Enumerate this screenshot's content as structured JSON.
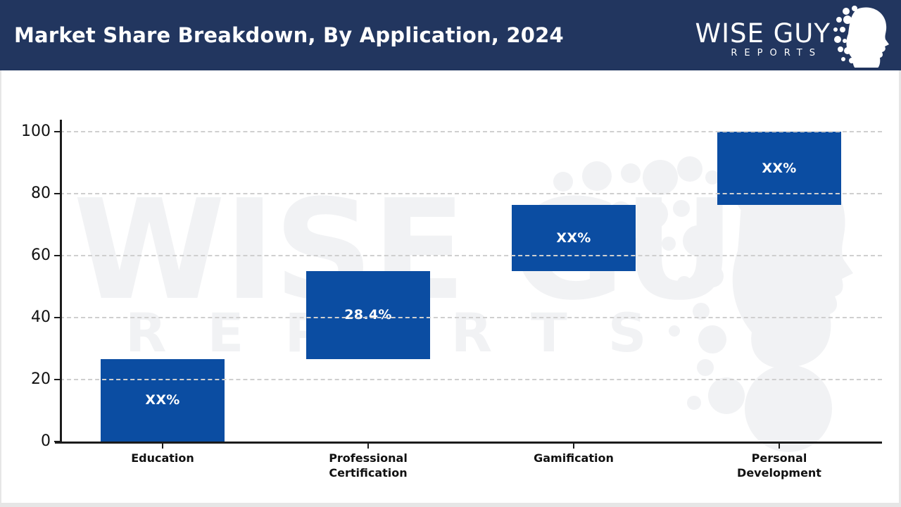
{
  "header": {
    "title": "Market Share Breakdown, By Application, 2024",
    "logo": {
      "name": "WISE GUY",
      "sub": "REPORTS"
    }
  },
  "watermark": {
    "line1": "WISE GUY",
    "line2": "REPORTS"
  },
  "chart_data": {
    "type": "bar",
    "subtype": "floating-waterfall",
    "title": "Market Share Breakdown, By Application, 2024",
    "categories": [
      "Education",
      "Professional Certification",
      "Gamification",
      "Personal Development"
    ],
    "series": [
      {
        "name": "Market Share",
        "segments": [
          {
            "category": "Education",
            "start": 0,
            "end": 26.6,
            "value": 26.6,
            "label": "XX%"
          },
          {
            "category": "Professional Certification",
            "start": 26.6,
            "end": 55.0,
            "value": 28.4,
            "label": "28.4%"
          },
          {
            "category": "Gamification",
            "start": 55.0,
            "end": 76.4,
            "value": 21.4,
            "label": "XX%"
          },
          {
            "category": "Personal Development",
            "start": 76.4,
            "end": 100.0,
            "value": 23.6,
            "label": "XX%"
          }
        ]
      }
    ],
    "xlabel": "",
    "ylabel": "",
    "ylim": [
      0,
      100
    ],
    "yticks": [
      0,
      20,
      40,
      60,
      80,
      100
    ],
    "grid": "horizontal-dashed",
    "legend": "none"
  },
  "colors": {
    "header_bg": "#22365f",
    "bar": "#0b4da2",
    "bar_label": "#ffffff",
    "axis": "#1c1c1c",
    "grid": "#cfcfcf",
    "watermark": "#f1f2f4"
  }
}
